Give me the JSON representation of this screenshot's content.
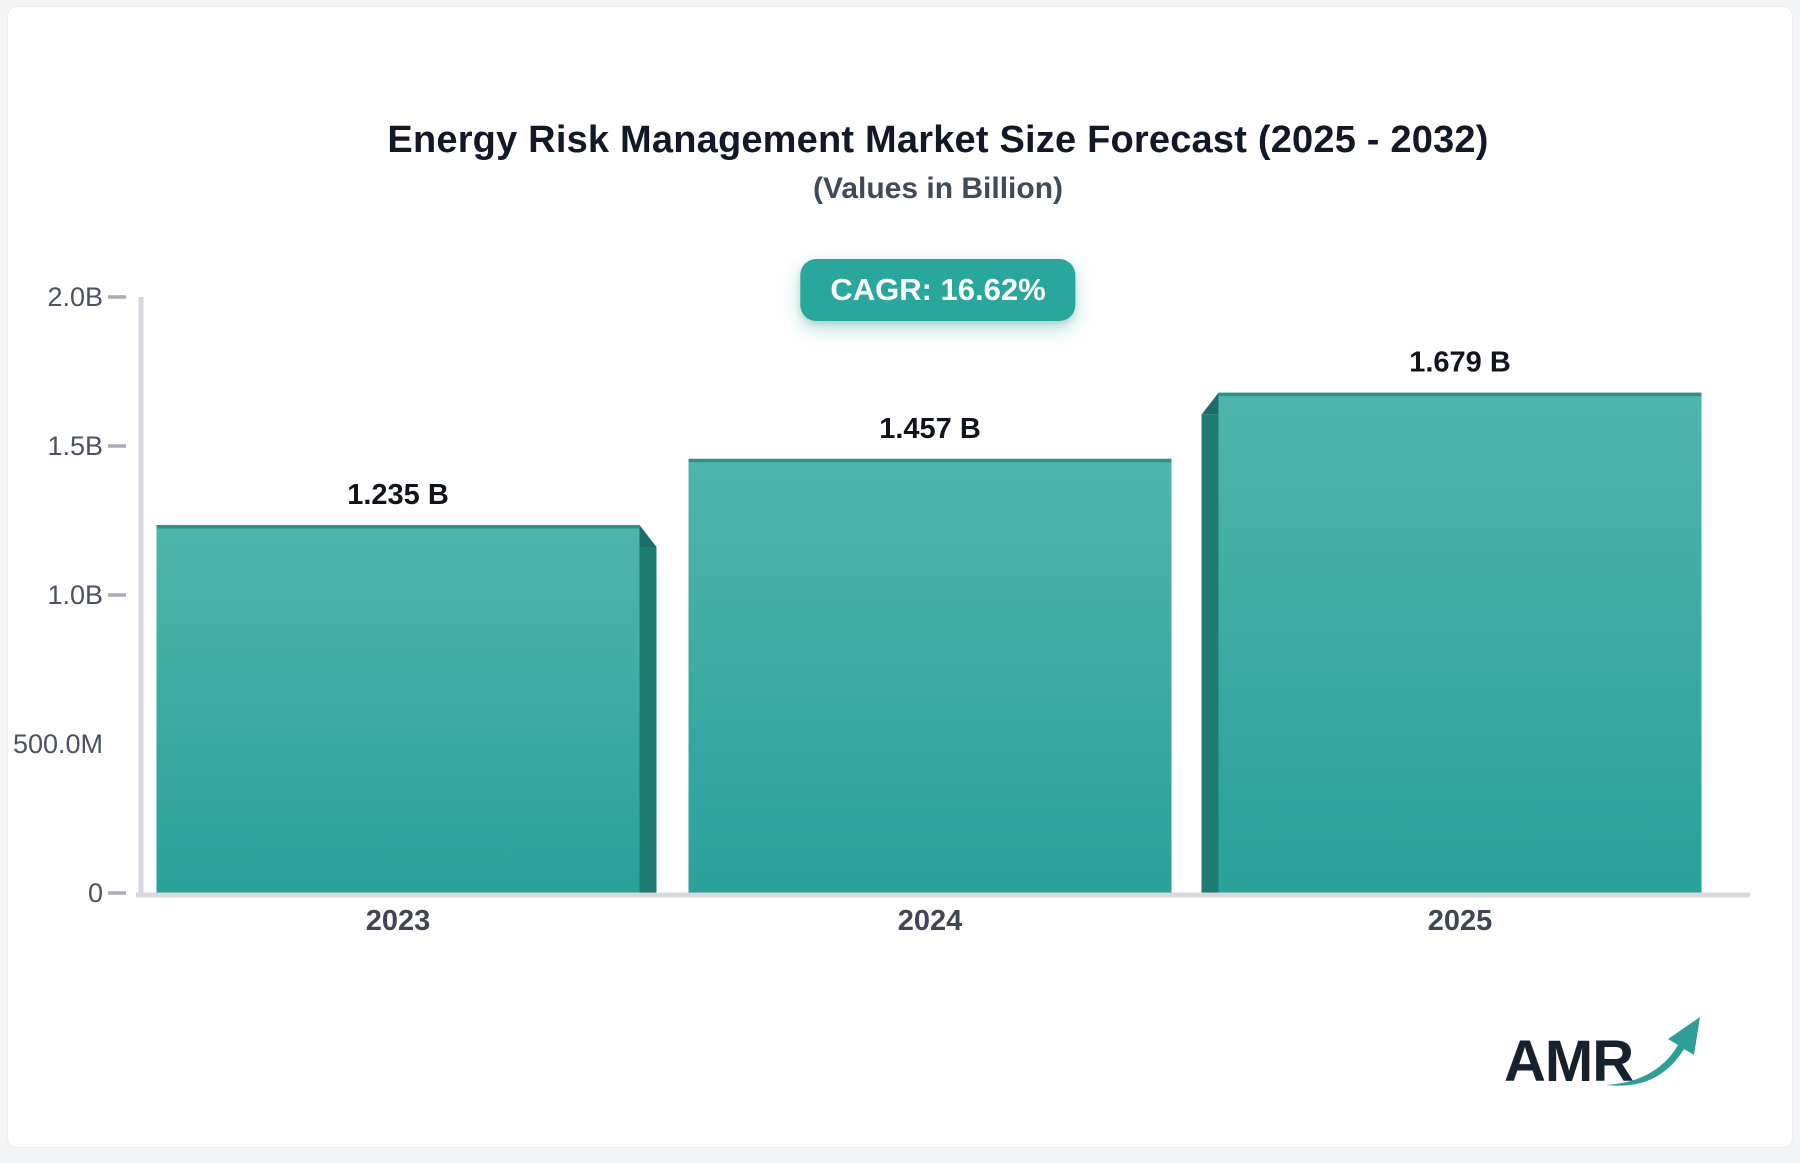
{
  "header": {
    "title": "Energy Risk Management Market Size Forecast (2025 - 2032)",
    "subtitle": "(Values in Billion)",
    "cagr_badge": "CAGR: 16.62%"
  },
  "footer": {
    "logo_text": "AMR",
    "logo_arrow_icon": "trending-up-arrow"
  },
  "colors": {
    "page_bg": "#f4f5f7",
    "card_bg": "#ffffff",
    "badge_bg": "#2aa79c",
    "badge_text": "#ffffff",
    "bar_gradient_top": "#4fb5ac",
    "bar_gradient_bottom": "#29a199",
    "bar_top_edge": "#2f9089",
    "bar_side_dark": "#1e7c72",
    "bar_bevel_dark": "#1a6e65",
    "axis_line": "#d6d8dd",
    "tick_mark": "#a9aeb6",
    "axis_label": "#4a5263",
    "category_label": "#3f4756",
    "value_label": "#10151c",
    "title_text": "#111827",
    "subtitle_text": "#3f4a5a",
    "logo_text": "#15222e",
    "logo_arrow": "#2f9e96"
  },
  "chart_data": {
    "type": "bar",
    "title": "Energy Risk Management Market Size Forecast (2025 - 2032)",
    "subtitle": "(Values in Billion)",
    "cagr_label": "CAGR: 16.62%",
    "categories": [
      "2023",
      "2024",
      "2025"
    ],
    "values_billion": [
      1.235,
      1.457,
      1.679
    ],
    "value_labels": [
      "1.235 B",
      "1.457 B",
      "1.679 B"
    ],
    "ylim": [
      0,
      2.0
    ],
    "yticks": [
      {
        "label": "2.0B",
        "value": 2.0,
        "tick_mark": true
      },
      {
        "label": "1.5B",
        "value": 1.5,
        "tick_mark": true
      },
      {
        "label": "1.0B",
        "value": 1.0,
        "tick_mark": true
      },
      {
        "label": "500.0M",
        "value": 0.5,
        "tick_mark": false
      },
      {
        "label": "0",
        "value": 0.0,
        "tick_mark": true
      }
    ],
    "grid": false,
    "legend": false
  }
}
